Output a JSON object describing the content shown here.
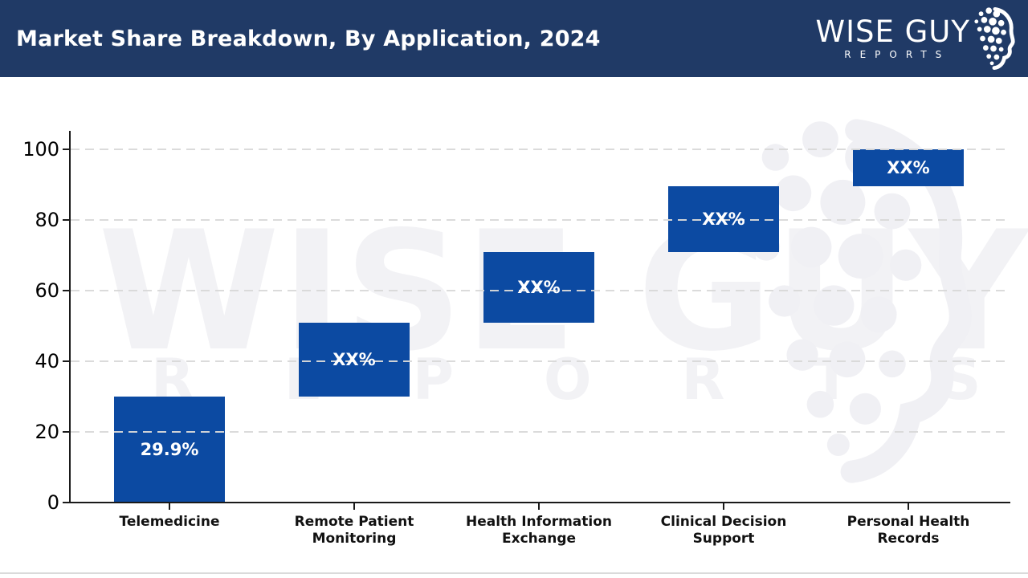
{
  "header": {
    "title": "Market Share Breakdown, By Application, 2024",
    "logo": {
      "line1": "WISE GUY",
      "line2": "REPORTS"
    }
  },
  "watermark": {
    "line1": "WISE GUY",
    "line2": "REPORTS"
  },
  "colors": {
    "header_bg": "#203a66",
    "bar": "#0c4aa2",
    "bar_label": "#ffffff",
    "grid": "#d9d9d9",
    "axis": "#1a1a1a",
    "watermark": "#f2f2f5"
  },
  "chart_data": {
    "type": "bar",
    "subtype": "waterfall",
    "title": "Market Share Breakdown, By Application, 2024",
    "xlabel": "",
    "ylabel": "",
    "ylim": [
      0,
      100
    ],
    "yticks": [
      0,
      20,
      40,
      60,
      80,
      100
    ],
    "grid": "horizontal-dashed",
    "legend": "none",
    "categories": [
      "Telemedicine",
      "Remote Patient Monitoring",
      "Health Information Exchange",
      "Clinical Decision Support",
      "Personal Health Records"
    ],
    "segments": [
      {
        "category": "Telemedicine",
        "label_lines": [
          "Telemedicine"
        ],
        "start": 0,
        "end": 29.9,
        "label": "29.9%"
      },
      {
        "category": "Remote Patient Monitoring",
        "label_lines": [
          "Remote Patient",
          "Monitoring"
        ],
        "start": 29.9,
        "end": 51.0,
        "label": "XX%"
      },
      {
        "category": "Health Information Exchange",
        "label_lines": [
          "Health Information",
          "Exchange"
        ],
        "start": 51.0,
        "end": 71.0,
        "label": "XX%"
      },
      {
        "category": "Clinical Decision Support",
        "label_lines": [
          "Clinical Decision",
          "Support"
        ],
        "start": 71.0,
        "end": 89.5,
        "label": "XX%"
      },
      {
        "category": "Personal Health Records",
        "label_lines": [
          "Personal Health",
          "Records"
        ],
        "start": 89.5,
        "end": 100,
        "label": "XX%"
      }
    ]
  }
}
